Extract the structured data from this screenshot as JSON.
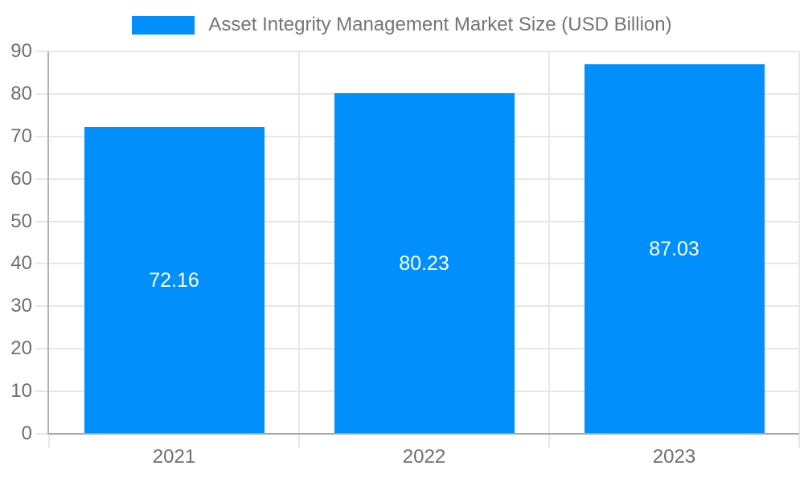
{
  "chart_data": {
    "type": "bar",
    "series_name": "Asset Integrity Management Market Size (USD Billion)",
    "categories": [
      "2021",
      "2022",
      "2023"
    ],
    "values": [
      72.16,
      80.23,
      87.03
    ],
    "data_labels": [
      "72.16",
      "80.23",
      "87.03"
    ],
    "ytick_labels": [
      "0",
      "10",
      "20",
      "30",
      "40",
      "50",
      "60",
      "70",
      "80",
      "90"
    ],
    "ylim": [
      0,
      90
    ],
    "ytick_step": 10,
    "grid": true,
    "legend_position": "top",
    "colors": {
      "bar": "#008FFB",
      "grid": "#e7e7e7",
      "y_axis_line": "#b3b3b3",
      "x_axis_line": "#a6a6a6",
      "axis_label": "#6e6f72",
      "legend_text": "#757575",
      "data_label": "#ffffff"
    }
  }
}
